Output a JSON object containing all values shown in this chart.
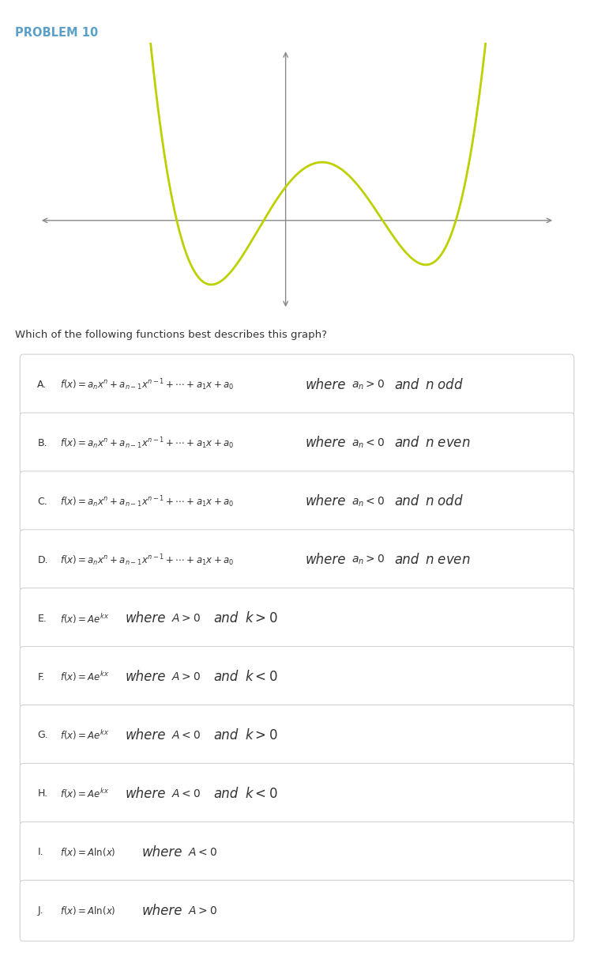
{
  "title": "PROBLEM 10",
  "title_color": "#5aa0c8",
  "title_fontsize": 10.5,
  "question_text": "Which of the following functions best describes this graph?",
  "curve_color": "#bdd000",
  "axis_color": "#888888",
  "background_color": "#ffffff",
  "options": [
    {
      "letter": "A.",
      "formula": "$f(x) = a_nx^n + a_{n-1}x^{n-1} + \\cdots + a_1x + a_0$",
      "where_clause": " where ",
      "condition_italic": "$a_n > 0$",
      "and_text": " and ",
      "last_part": "$n$ odd"
    },
    {
      "letter": "B.",
      "formula": "$f(x) = a_nx^n + a_{n-1}x^{n-1} + \\cdots + a_1x + a_0$",
      "where_clause": " where ",
      "condition_italic": "$a_n < 0$",
      "and_text": " and ",
      "last_part": "$n$ even"
    },
    {
      "letter": "C.",
      "formula": "$f(x) = a_nx^n + a_{n-1}x^{n-1} + \\cdots + a_1x + a_0$",
      "where_clause": " where ",
      "condition_italic": "$a_n < 0$",
      "and_text": " and ",
      "last_part": "$n$ odd"
    },
    {
      "letter": "D.",
      "formula": "$f(x) = a_nx^n + a_{n-1}x^{n-1} + \\cdots + a_1x + a_0$",
      "where_clause": " where ",
      "condition_italic": "$a_n > 0$",
      "and_text": " and ",
      "last_part": "$n$ even"
    },
    {
      "letter": "E.",
      "formula": "$f(x) = Ae^{kx}$",
      "where_clause": " where ",
      "condition_italic": "$A > 0$",
      "and_text": " and ",
      "last_part": "$k > 0$"
    },
    {
      "letter": "F.",
      "formula": "$f(x) = Ae^{kx}$",
      "where_clause": " where ",
      "condition_italic": "$A > 0$",
      "and_text": " and ",
      "last_part": "$k < 0$"
    },
    {
      "letter": "G.",
      "formula": "$f(x) = Ae^{kx}$",
      "where_clause": " where ",
      "condition_italic": "$A < 0$",
      "and_text": " and ",
      "last_part": "$k > 0$"
    },
    {
      "letter": "H.",
      "formula": "$f(x) = Ae^{kx}$",
      "where_clause": " where ",
      "condition_italic": "$A < 0$",
      "and_text": " and ",
      "last_part": "$k < 0$"
    },
    {
      "letter": "I.",
      "formula": "$f(x) = A\\ln(x)$",
      "where_clause": " where ",
      "condition_italic": "$A < 0$",
      "and_text": "",
      "last_part": ""
    },
    {
      "letter": "J.",
      "formula": "$f(x) = A\\ln(x)$",
      "where_clause": " where ",
      "condition_italic": "$A > 0$",
      "and_text": "",
      "last_part": ""
    }
  ]
}
